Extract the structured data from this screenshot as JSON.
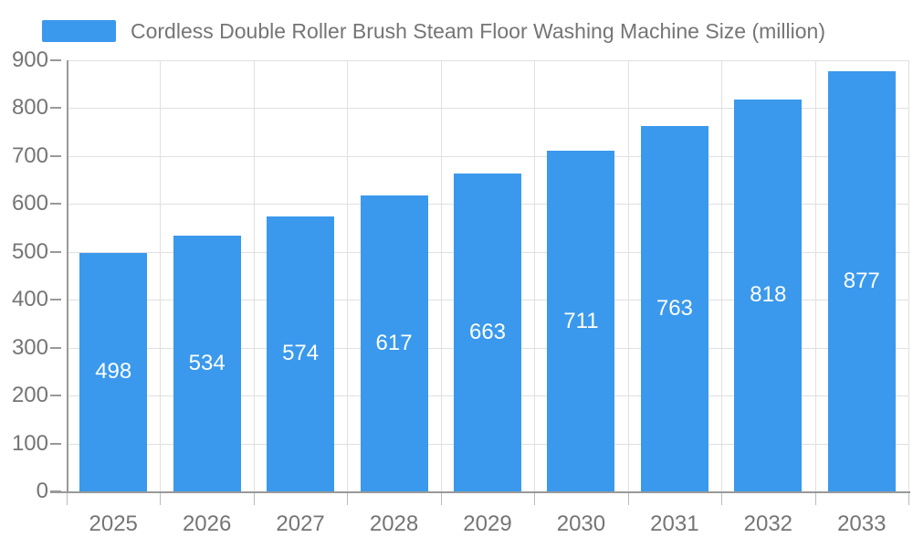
{
  "chart_data": {
    "type": "bar",
    "title": "Cordless Double Roller Brush Steam Floor Washing Machine Size (million)",
    "series_name": "Cordless Double Roller Brush Steam Floor Washing Machine Size (million)",
    "categories": [
      "2025",
      "2026",
      "2027",
      "2028",
      "2029",
      "2030",
      "2031",
      "2032",
      "2033"
    ],
    "values": [
      498,
      534,
      574,
      617,
      663,
      711,
      763,
      818,
      877
    ],
    "xlabel": "",
    "ylabel": "",
    "ylim": [
      0,
      900
    ],
    "ytick_interval": 100,
    "yticks": [
      0,
      100,
      200,
      300,
      400,
      500,
      600,
      700,
      800,
      900
    ],
    "grid": true,
    "legend_position": "top-left",
    "value_label_position": "inside-center",
    "colors": {
      "bar": "#3A99EC",
      "value_label": "#FFFFFF",
      "axis_text": "#757575",
      "legend_text": "#757575",
      "gridline": "#E0E0E0",
      "axis_line": "#999999",
      "tick": "#BBBBBB",
      "background": "#FFFFFF"
    }
  }
}
